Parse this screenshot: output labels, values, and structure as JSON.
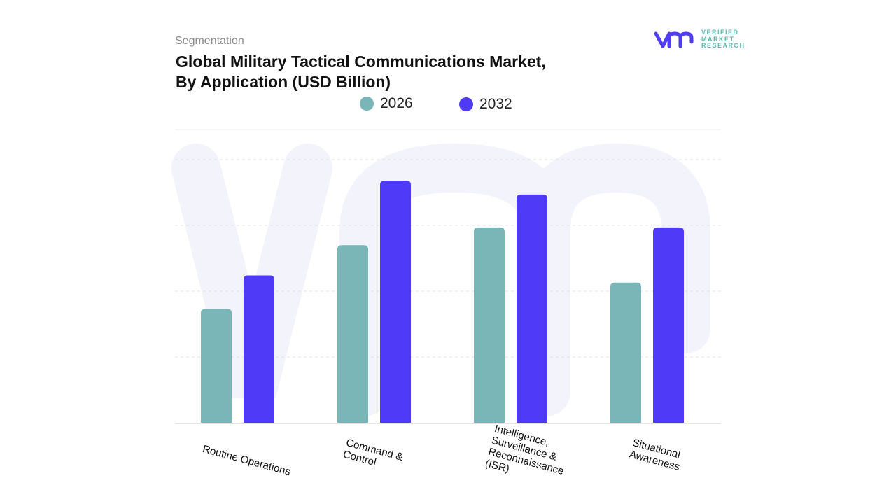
{
  "header": {
    "segment_label": "Segmentation",
    "title_line1": "Global Military Tactical Communications Market,",
    "title_line2": "By Application (USD Billion)"
  },
  "logo": {
    "line1": "VERIFIED",
    "line2": "MARKET",
    "line3": "RESEARCH",
    "brand_color": "#4f3ef0",
    "text_color": "#5bbab0"
  },
  "chart_data": {
    "type": "bar",
    "title": "Global Military Tactical Communications Market, By Application (USD Billion)",
    "categories": [
      "Routine Operations",
      "Command & Control",
      "Intelligence, Surveillance & Reconnaissance (ISR)",
      "Situational Awareness"
    ],
    "series": [
      {
        "name": "2026",
        "color": "#7ab5b8",
        "values": [
          1.73,
          2.7,
          2.97,
          2.13
        ]
      },
      {
        "name": "2032",
        "color": "#4f3af7",
        "values": [
          2.24,
          3.68,
          3.47,
          2.97
        ]
      }
    ],
    "ylim": [
      0,
      4
    ],
    "y_tick_labels_shown": false,
    "grid": true,
    "legend_position": "top"
  },
  "xlabels": [
    "Routine Operations",
    "Command &\nControl",
    "Intelligence,\nSurveillance &\nReconnaissance\n(ISR)",
    "Situational\nAwareness"
  ]
}
